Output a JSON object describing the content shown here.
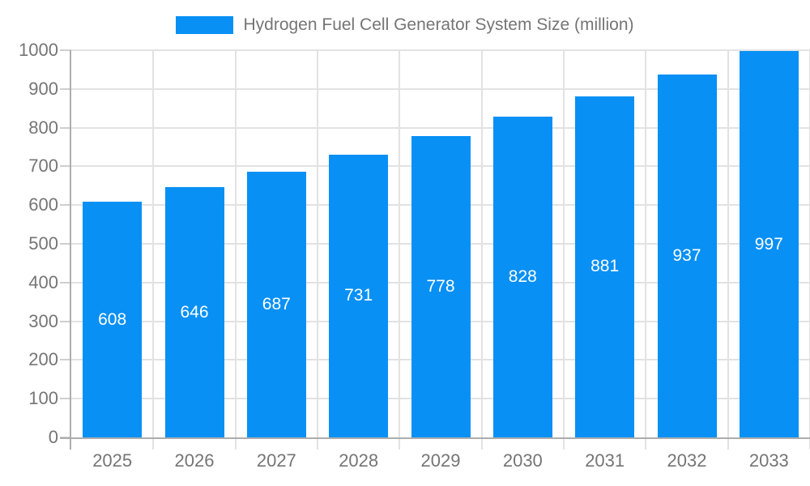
{
  "chart_data": {
    "type": "bar",
    "series_name": "Hydrogen Fuel Cell Generator System Size (million)",
    "categories": [
      "2025",
      "2026",
      "2027",
      "2028",
      "2029",
      "2030",
      "2031",
      "2032",
      "2033"
    ],
    "values": [
      608,
      646,
      687,
      731,
      778,
      828,
      881,
      937,
      997
    ],
    "title": "",
    "xlabel": "",
    "ylabel": "",
    "ylim": [
      0,
      1000
    ],
    "y_ticks": [
      0,
      100,
      200,
      300,
      400,
      500,
      600,
      700,
      800,
      900,
      1000
    ],
    "grid": true,
    "legend_position": "top-center",
    "bar_color": "#0890F5",
    "bar_label_color": "#ffffff",
    "axis_text_color": "#757575",
    "gridline_color": "#e2e2e2",
    "axis_line_color": "#adadad"
  }
}
